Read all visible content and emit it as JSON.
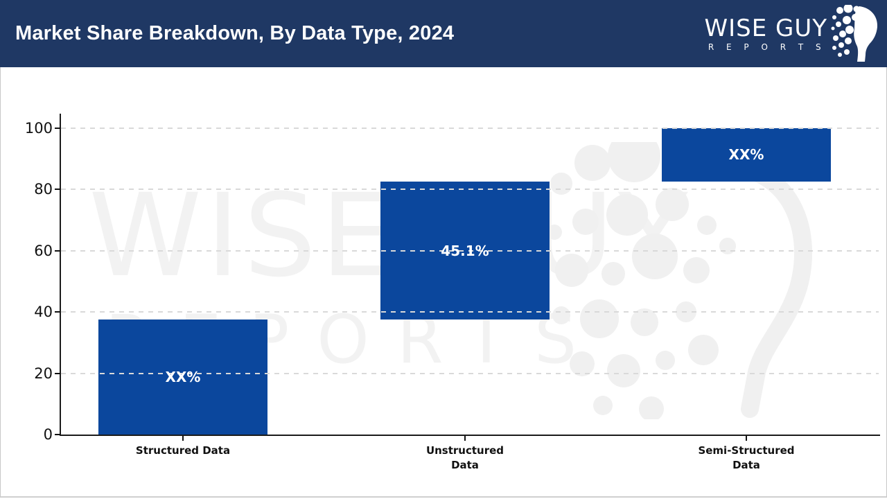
{
  "header": {
    "title": "Market Share Breakdown, By Data Type, 2024",
    "bg_color": "#1F3864",
    "brand": {
      "line1": "WISE GUY",
      "line2": "R E P O R T S"
    }
  },
  "watermark": {
    "line1": "WISE GUY",
    "line2": "REPORTS"
  },
  "chart_data": {
    "type": "bar",
    "subtype": "waterfall-stacked-percentage",
    "title": "Market Share Breakdown, By Data Type, 2024",
    "categories": [
      "Structured Data",
      "Unstructured Data",
      "Semi-Structured Data"
    ],
    "segments": [
      {
        "category": "Structured Data",
        "start": 0,
        "end": 37.5,
        "label": "XX%"
      },
      {
        "category": "Unstructured Data",
        "start": 37.5,
        "end": 82.6,
        "label": "45.1%"
      },
      {
        "category": "Semi-Structured Data",
        "start": 82.6,
        "end": 100,
        "label": "XX%"
      }
    ],
    "y_ticks": [
      0,
      20,
      40,
      60,
      80,
      100
    ],
    "ylim": [
      0,
      100
    ],
    "xlabel": "",
    "ylabel": "",
    "grid": "dashed-horizontal-over-bars",
    "legend": "none",
    "bar_color": "#0B479D",
    "bar_label_color": "#ffffff",
    "axis_color": "#1a1a1a",
    "gridline_color": "#d9d9d9"
  }
}
